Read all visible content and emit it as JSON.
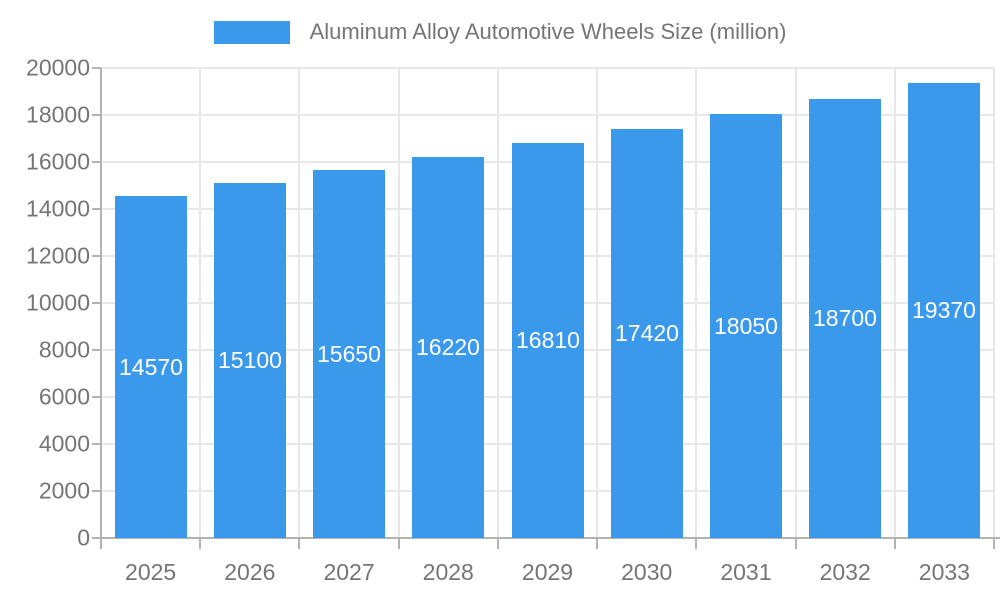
{
  "chart_data": {
    "type": "bar",
    "title": "",
    "legend": "Aluminum Alloy Automotive Wheels Size (million)",
    "categories": [
      "2025",
      "2026",
      "2027",
      "2028",
      "2029",
      "2030",
      "2031",
      "2032",
      "2033"
    ],
    "values": [
      14570,
      15100,
      15650,
      16220,
      16810,
      17420,
      18050,
      18700,
      19370
    ],
    "xlabel": "",
    "ylabel": "",
    "ylim": [
      0,
      20000
    ],
    "ytick_step": 2000,
    "ytick_labels": [
      "0",
      "2000",
      "4000",
      "6000",
      "8000",
      "10000",
      "12000",
      "14000",
      "16000",
      "18000",
      "20000"
    ],
    "grid": true,
    "legend_position": "top-center",
    "value_labels": "inside-center",
    "colors": {
      "bar": "#3b99ec",
      "axis": "#b3b3b3",
      "grid": "#e8e8e8",
      "label_text": "#757575",
      "value_label_text": "#ffffff",
      "background": "#ffffff"
    }
  }
}
